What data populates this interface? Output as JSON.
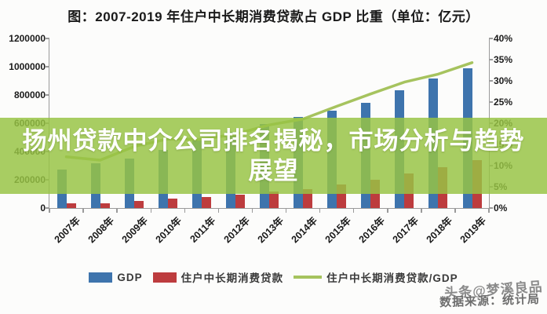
{
  "title": "图：2007-2019 年住户中长期消费贷款占 GDP 比重（单位：亿元）",
  "banner": {
    "line1": "扬州贷款中介公司排名揭秘，市场分析与趋势",
    "line2": "展望",
    "background_color": "#97c344",
    "text_color": "#ffffff"
  },
  "watermark": "头条@梦溪良品",
  "source_note": "数据来源：统计局",
  "chart_data": {
    "type": "bar",
    "title": "图：2007-2019 年住户中长期消费贷款占 GDP 比重（单位：亿元）",
    "categories": [
      "2007年",
      "2008年",
      "2009年",
      "2010年",
      "2011年",
      "2012年",
      "2013年",
      "2014年",
      "2015年",
      "2016年",
      "2017年",
      "2018年",
      "2019年"
    ],
    "series": [
      {
        "name": "GDP",
        "type": "bar",
        "axis": "left",
        "color": "#3e74ad",
        "values": [
          270000,
          319000,
          349000,
          412000,
          488000,
          539000,
          593000,
          644000,
          689000,
          746000,
          832000,
          919000,
          991000
        ]
      },
      {
        "name": "住户中长期消费贷款",
        "type": "bar",
        "axis": "left",
        "color": "#bd3c3e",
        "values": [
          32700,
          36100,
          50600,
          67400,
          79000,
          93500,
          116000,
          135000,
          165000,
          201000,
          247000,
          290000,
          340000
        ]
      },
      {
        "name": "住户中长期消费贷款/GDP",
        "type": "line",
        "axis": "right",
        "color": "#a6c35e",
        "values": [
          12.1,
          11.3,
          14.5,
          16.3,
          16.2,
          17.4,
          19.6,
          21.0,
          24.0,
          26.9,
          29.7,
          31.6,
          34.3
        ]
      }
    ],
    "left_axis": {
      "min": 0,
      "max": 1200000,
      "tick_labels": [
        "0",
        "200000",
        "400000",
        "600000",
        "800000",
        "1000000",
        "1200000"
      ]
    },
    "right_axis": {
      "min": 0,
      "max": 40,
      "tick_labels": [
        "0%",
        "5%",
        "10%",
        "15%",
        "20%",
        "25%",
        "30%",
        "35%",
        "40%"
      ]
    },
    "legend_position": "bottom",
    "grid": false
  }
}
